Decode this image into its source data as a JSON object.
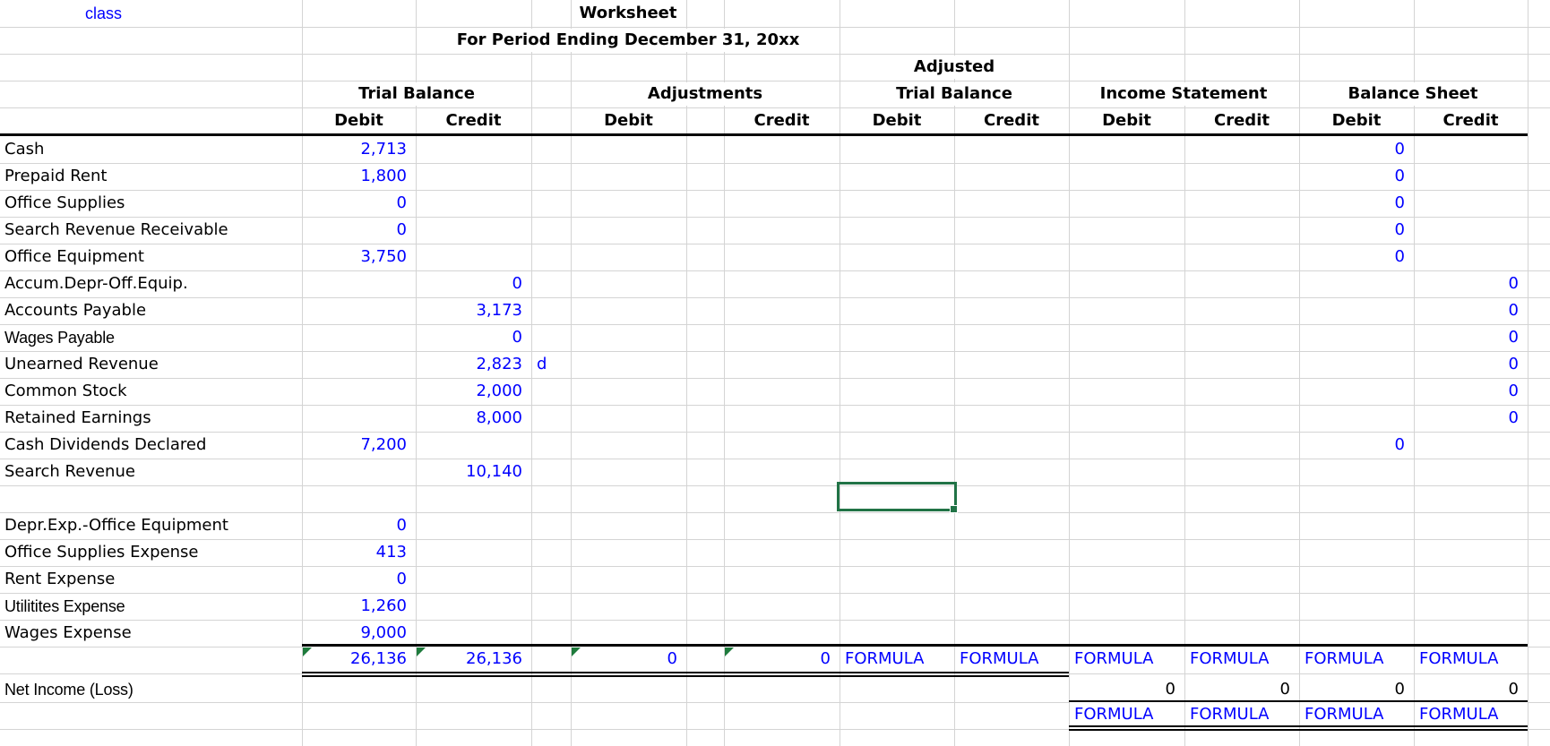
{
  "header": {
    "class_label": "class",
    "worksheet_title": "Worksheet",
    "period_subtitle": "For Period Ending December 31, 20xx",
    "adjusted_label": "Adjusted",
    "section_titles": {
      "trial_balance": "Trial Balance",
      "adjustments": "Adjustments",
      "adjusted_trial_balance": "Trial Balance",
      "income_statement": "Income Statement",
      "balance_sheet": "Balance Sheet"
    },
    "debit_label": "Debit",
    "credit_label": "Credit"
  },
  "account_rows": [
    {
      "label": "Cash",
      "cells": {
        "tb_debit": "2,713",
        "bs_debit": "0"
      }
    },
    {
      "label": "Prepaid Rent",
      "cells": {
        "tb_debit": "1,800",
        "bs_debit": "0"
      }
    },
    {
      "label": "Office Supplies",
      "cells": {
        "tb_debit": "0",
        "bs_debit": "0"
      }
    },
    {
      "label": "Search Revenue Receivable",
      "cells": {
        "tb_debit": "0",
        "bs_debit": "0"
      }
    },
    {
      "label": "Office Equipment",
      "cells": {
        "tb_debit": "3,750",
        "bs_debit": "0"
      }
    },
    {
      "label": "Accum.Depr-Off.Equip.",
      "cells": {
        "tb_credit": "0",
        "bs_credit": "0"
      }
    },
    {
      "label": "Accounts Payable",
      "cells": {
        "tb_credit": "3,173",
        "bs_credit": "0"
      }
    },
    {
      "label": "Wages Payable",
      "alt_font": true,
      "cells": {
        "tb_credit": "0",
        "bs_credit": "0"
      }
    },
    {
      "label": "Unearned Revenue",
      "cells": {
        "tb_credit": "2,823",
        "note1": "d",
        "bs_credit": "0"
      }
    },
    {
      "label": "Common Stock",
      "cells": {
        "tb_credit": "2,000",
        "bs_credit": "0"
      }
    },
    {
      "label": "Retained Earnings",
      "cells": {
        "tb_credit": "8,000",
        "bs_credit": "0"
      }
    },
    {
      "label": "Cash Dividends Declared",
      "cells": {
        "tb_debit": "7,200",
        "bs_debit": "0"
      }
    },
    {
      "label": "Search Revenue",
      "cells": {
        "tb_credit": "10,140"
      }
    },
    {
      "label": "",
      "cells": {}
    },
    {
      "label": "Depr.Exp.-Office Equipment",
      "cells": {
        "tb_debit": "0"
      }
    },
    {
      "label": "Office Supplies Expense",
      "cells": {
        "tb_debit": "413"
      }
    },
    {
      "label": "Rent Expense",
      "cells": {
        "tb_debit": "0"
      }
    },
    {
      "label": "Utilitites Expense",
      "alt_font": true,
      "cells": {
        "tb_debit": "1,260"
      }
    },
    {
      "label": "Wages Expense",
      "cells": {
        "tb_debit": "9,000"
      }
    }
  ],
  "totals_row": {
    "cells": {
      "tb_debit": "26,136",
      "tb_credit": "26,136",
      "adj_debit": "0",
      "adj_credit": "0",
      "atb_debit": "FORMULA",
      "atb_credit": "FORMULA",
      "is_debit": "FORMULA",
      "is_credit": "FORMULA",
      "bs_debit": "FORMULA",
      "bs_credit": "FORMULA"
    },
    "flagged_cells": [
      "tb_debit",
      "tb_credit",
      "adj_debit",
      "adj_credit"
    ]
  },
  "net_income_row": {
    "label": "Net Income (Loss)",
    "cells": {
      "is_debit": "0",
      "is_credit": "0",
      "bs_debit": "0",
      "bs_credit": "0"
    }
  },
  "formula_row": {
    "cells": {
      "is_debit": "FORMULA",
      "is_credit": "FORMULA",
      "bs_debit": "FORMULA",
      "bs_credit": "FORMULA"
    }
  },
  "selection": {
    "location": "adjusted-trial-balance-debit-blank-row"
  },
  "colors": {
    "value_text": "#0000FF",
    "label_text": "#000000",
    "selection_green": "#217346",
    "flag_green": "#1E7B3C",
    "gridline": "#D4D4D4"
  }
}
